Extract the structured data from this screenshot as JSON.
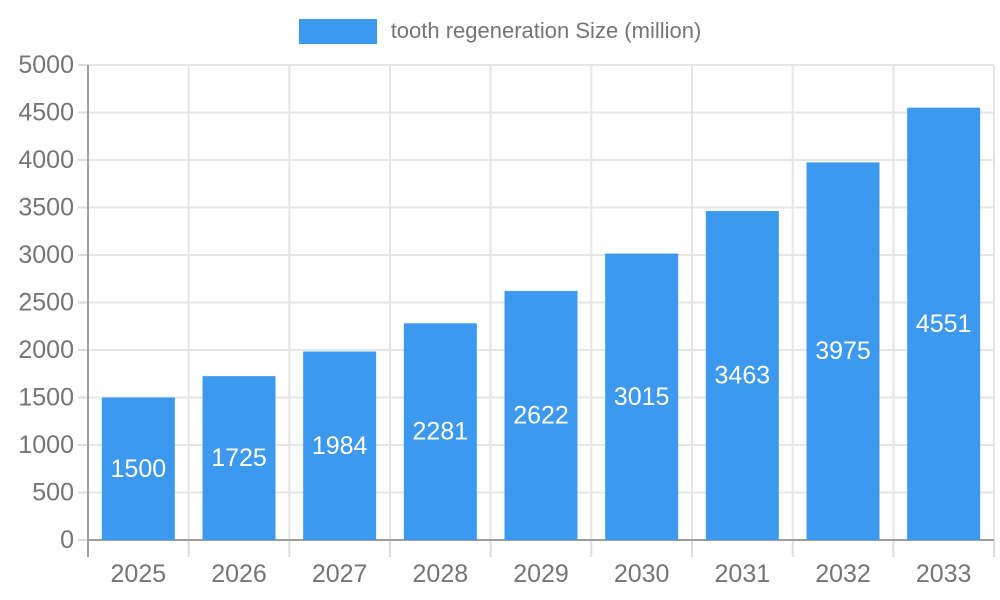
{
  "legend": {
    "label": "tooth regeneration Size (million)"
  },
  "chart_data": {
    "type": "bar",
    "title": "",
    "series_name": "tooth regeneration Size (million)",
    "categories": [
      "2025",
      "2026",
      "2027",
      "2028",
      "2029",
      "2030",
      "2031",
      "2032",
      "2033"
    ],
    "values": [
      1500,
      1725,
      1984,
      2281,
      2622,
      3015,
      3463,
      3975,
      4551
    ],
    "bar_labels": [
      "1500",
      "1725",
      "1984",
      "2281",
      "2622",
      "3015",
      "3463",
      "3975",
      "4551"
    ],
    "xlabel": "",
    "ylabel": "",
    "ylim": [
      0,
      5000
    ],
    "ytick_step": 500,
    "yticks": [
      0,
      500,
      1000,
      1500,
      2000,
      2500,
      3000,
      3500,
      4000,
      4500,
      5000
    ],
    "grid": true,
    "legend_position": "top-center"
  },
  "colors": {
    "bar": "#3D99EE",
    "bar_label": "#FFFFFF",
    "grid_line": "#E6E6E6",
    "axis_line": "#9E9E9E",
    "tick_line": "#DCDCDC",
    "axis_text": "#757575",
    "legend_text": "#757575",
    "background": "#FFFFFF"
  }
}
